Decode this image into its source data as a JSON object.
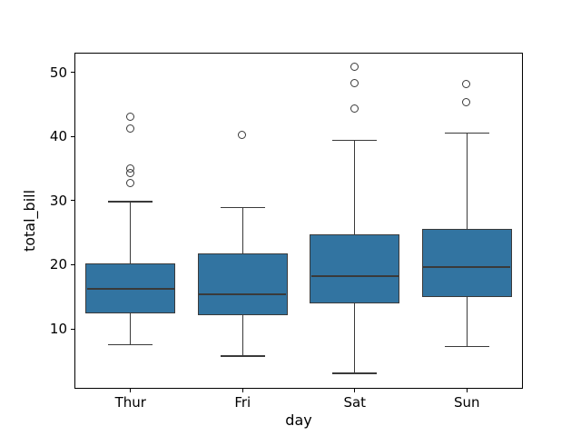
{
  "figure": {
    "background": "#ffffff"
  },
  "chart_data": {
    "type": "box",
    "title": "",
    "xlabel": "day",
    "ylabel": "total_bill",
    "categories": [
      "Thur",
      "Fri",
      "Sat",
      "Sun"
    ],
    "yticks": [
      10,
      20,
      30,
      40,
      50
    ],
    "ylim": [
      0.66,
      53.07
    ],
    "grid": false,
    "legend": "none",
    "colors": {
      "box_fill": "#3274a1",
      "line": "#3a3a3a",
      "spine": "#000000",
      "text": "#000000"
    },
    "boxes": [
      {
        "category": "Thur",
        "whisker_low": 7.51,
        "q1": 12.44,
        "median": 16.2,
        "q3": 20.16,
        "whisker_high": 29.85,
        "outliers": [
          32.68,
          34.3,
          34.9,
          41.19,
          43.11
        ]
      },
      {
        "category": "Fri",
        "whisker_low": 5.75,
        "q1": 12.1,
        "median": 15.38,
        "q3": 21.75,
        "whisker_high": 28.97,
        "outliers": [
          40.17
        ]
      },
      {
        "category": "Sat",
        "whisker_low": 3.07,
        "q1": 13.91,
        "median": 18.24,
        "q3": 24.74,
        "whisker_high": 39.42,
        "outliers": [
          44.3,
          48.27,
          50.81
        ]
      },
      {
        "category": "Sun",
        "whisker_low": 7.25,
        "q1": 14.99,
        "median": 19.63,
        "q3": 25.6,
        "whisker_high": 40.55,
        "outliers": [
          45.35,
          48.17
        ]
      }
    ]
  }
}
